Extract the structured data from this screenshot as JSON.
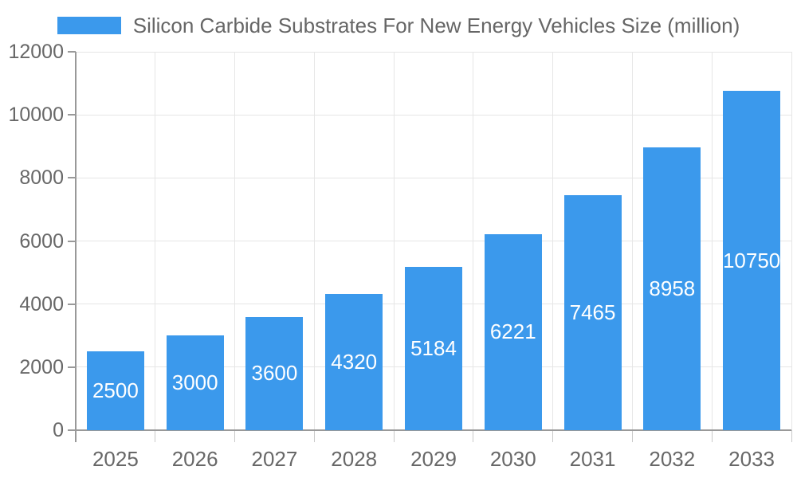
{
  "chart_data": {
    "type": "bar",
    "title": "Silicon Carbide Substrates For New Energy Vehicles Size (million)",
    "categories": [
      "2025",
      "2026",
      "2027",
      "2028",
      "2029",
      "2030",
      "2031",
      "2032",
      "2033"
    ],
    "values": [
      2500,
      3000,
      3600,
      4320,
      5184,
      6221,
      7465,
      8958,
      10750
    ],
    "series": [
      {
        "name": "Silicon Carbide Substrates For New Energy Vehicles Size (million)",
        "values": [
          2500,
          3000,
          3600,
          4320,
          5184,
          6221,
          7465,
          8958,
          10750
        ]
      }
    ],
    "xlabel": "",
    "ylabel": "",
    "ylim": [
      0,
      12000
    ],
    "yticks": [
      0,
      2000,
      4000,
      6000,
      8000,
      10000,
      12000
    ],
    "grid": true,
    "legend_position": "top",
    "data_labels": "inside-center",
    "colors": {
      "bar": "#3b99ec",
      "bar_label": "#ffffff",
      "axis_line": "#999999",
      "grid_line": "#e6e6e6",
      "tick_mark": "#c9c9c9",
      "tick_text": "#686868",
      "legend_text": "#666666",
      "background": "#ffffff"
    }
  }
}
